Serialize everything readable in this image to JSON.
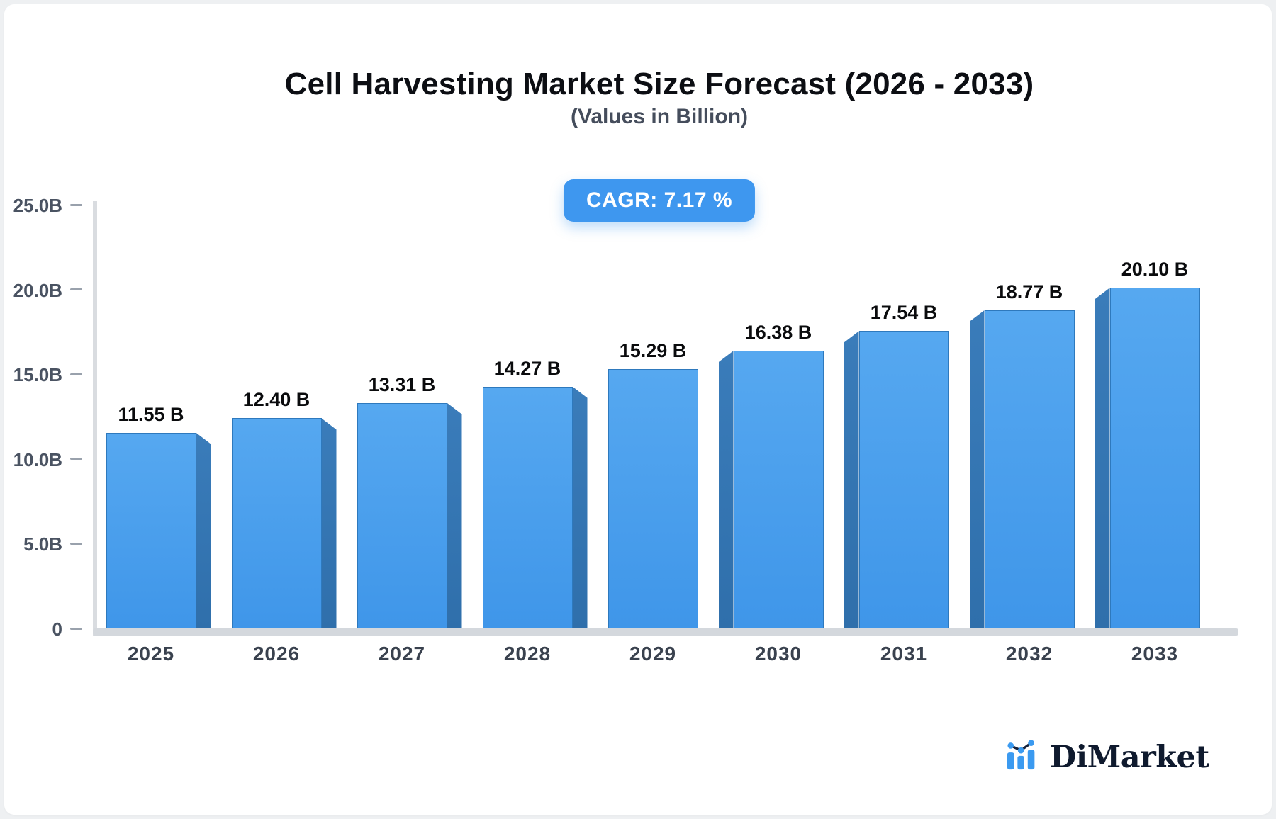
{
  "header": {
    "title": "Cell Harvesting Market Size Forecast (2026 - 2033)",
    "subtitle": "(Values in Billion)"
  },
  "badge": {
    "label": "CAGR: 7.17 %",
    "background_color": "#3e97ef",
    "text_color": "#ffffff"
  },
  "chart_data": {
    "type": "bar",
    "title": "Cell Harvesting Market Size Forecast (2026 - 2033)",
    "subtitle": "(Values in Billion)",
    "unit": "Billion USD",
    "categories": [
      "2025",
      "2026",
      "2027",
      "2028",
      "2029",
      "2030",
      "2031",
      "2032",
      "2033"
    ],
    "values": [
      11.55,
      12.4,
      13.31,
      14.27,
      15.29,
      16.38,
      17.54,
      18.77,
      20.1
    ],
    "value_labels": [
      "11.55 B",
      "12.40 B",
      "13.31 B",
      "14.27 B",
      "15.29 B",
      "16.38 B",
      "17.54 B",
      "18.77 B",
      "20.10 B"
    ],
    "cagr": "7.17 %",
    "ylim": [
      0,
      25
    ],
    "y_axis": [
      {
        "label": "25.0B",
        "value": 25
      },
      {
        "label": "20.0B",
        "value": 20
      },
      {
        "label": "15.0B",
        "value": 15
      },
      {
        "label": "10.0B",
        "value": 10
      },
      {
        "label": "5.0B",
        "value": 5
      },
      {
        "label": "0",
        "value": 0
      }
    ],
    "grid": false,
    "legend": false,
    "colors": {
      "bar_face_top": "#56a8f0",
      "bar_face_bottom": "#3f96e9",
      "bar_face_border": "#2e79bd",
      "bar_side_top": "#3a7cba",
      "bar_side_bottom": "#2f6fab",
      "axis_line": "#d9dce0",
      "tick": "#99a1ac"
    }
  },
  "logo": {
    "text": "DiMarket",
    "icon": "mini-bar-line-chart-icon",
    "icon_color": "#3b9af0",
    "line_color": "#15223c",
    "text_color": "#0f1a2e"
  }
}
